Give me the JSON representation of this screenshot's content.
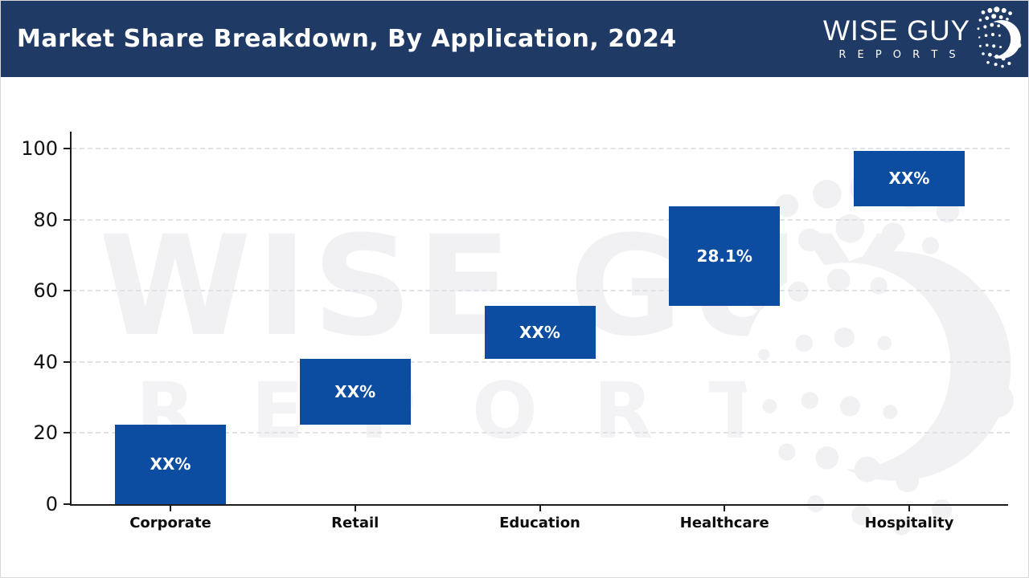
{
  "header": {
    "title": "Market Share Breakdown, By Application, 2024",
    "bg_color": "#203a66",
    "logo": {
      "wordmark": "WISE GUY",
      "subtext": "R E P O R T S"
    }
  },
  "watermark": {
    "line1": "WISE GUY",
    "line2": "R E P O R T S"
  },
  "chart_data": {
    "type": "bar",
    "subtype": "waterfall",
    "title": "Market Share Breakdown, By Application, 2024",
    "categories": [
      "Corporate",
      "Retail",
      "Education",
      "Healthcare",
      "Hospitality"
    ],
    "segments": [
      {
        "category": "Corporate",
        "start": 0,
        "end": 22.4,
        "value_label": "XX%"
      },
      {
        "category": "Retail",
        "start": 22.4,
        "end": 40.9,
        "value_label": "XX%"
      },
      {
        "category": "Education",
        "start": 40.9,
        "end": 55.7,
        "value_label": "XX%"
      },
      {
        "category": "Healthcare",
        "start": 55.7,
        "end": 83.8,
        "value_label": "28.1%"
      },
      {
        "category": "Hospitality",
        "start": 83.8,
        "end": 99.3,
        "value_label": "XX%"
      }
    ],
    "y_ticks": [
      0,
      20,
      40,
      60,
      80,
      100
    ],
    "ylim": [
      0,
      104.5
    ],
    "grid": true,
    "gridline_style": "dashed",
    "legend": null,
    "bar_color": "#0c4da2",
    "bar_label_color": "#ffffff",
    "axis_color": "#1c1c1c"
  }
}
